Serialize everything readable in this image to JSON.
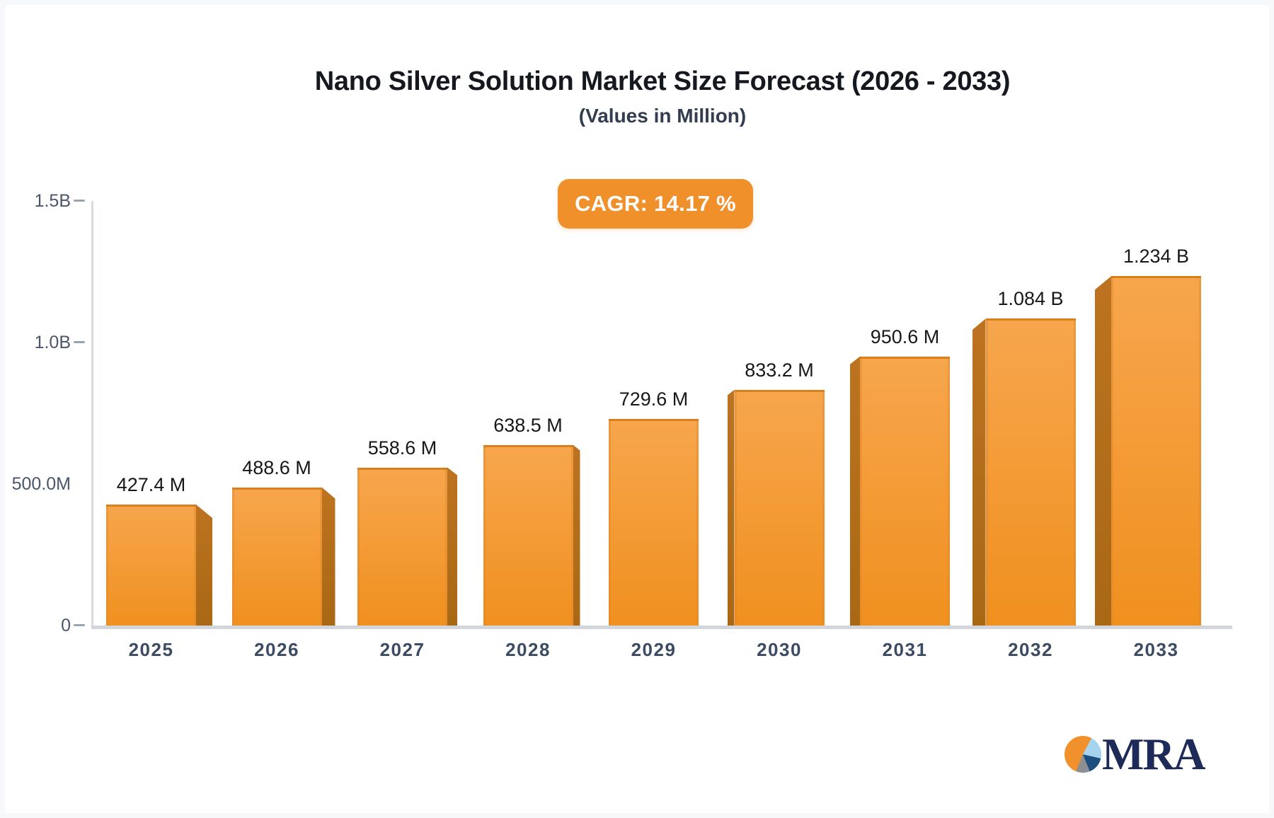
{
  "header": {
    "title": "Nano Silver Solution Market Size Forecast (2026 - 2033)",
    "subtitle": "(Values in Million)",
    "cagr_badge": "CAGR: 14.17 %"
  },
  "chart_data": {
    "type": "bar",
    "title": "Nano Silver Solution Market Size Forecast (2026 - 2033)",
    "subtitle": "(Values in Million)",
    "cagr_percent": 14.17,
    "categories": [
      "2025",
      "2026",
      "2027",
      "2028",
      "2029",
      "2030",
      "2031",
      "2032",
      "2033"
    ],
    "values_millions": [
      427.4,
      488.6,
      558.6,
      638.5,
      729.6,
      833.2,
      950.6,
      1084,
      1234
    ],
    "value_labels": [
      "427.4 M",
      "488.6 M",
      "558.6 M",
      "638.5 M",
      "729.6 M",
      "833.2 M",
      "950.6 M",
      "1.084 B",
      "1.234 B"
    ],
    "xlabel": "",
    "ylabel": "",
    "ylim_millions": [
      0,
      1500
    ],
    "grid": false,
    "legend": "none",
    "y_axis": {
      "ticks": [
        {
          "label": "1.5B",
          "value_millions": 1500,
          "dash": true
        },
        {
          "label": "1.0B",
          "value_millions": 1000,
          "dash": true
        },
        {
          "label": "500.0M",
          "value_millions": 500,
          "dash": false
        },
        {
          "label": "0",
          "value_millions": 0,
          "dash": true
        }
      ]
    },
    "colors": {
      "bar_face_top": "#f7a64d",
      "bar_face_bottom": "#f0901f",
      "bar_side": "#b16d1a",
      "bar_top_edge": "#d37816",
      "badge_background": "#f0902b",
      "axis_line": "#d8dbe0",
      "year_label": "#3c4b64",
      "value_label": "#17181a"
    }
  },
  "logo": {
    "text": "MRA",
    "text_color": "#1e2a57",
    "pie_colors": {
      "orange": "#f0912b",
      "light_blue": "#a6d3ee",
      "dark_blue": "#1d4f7e",
      "gray": "#8e8e93"
    }
  }
}
